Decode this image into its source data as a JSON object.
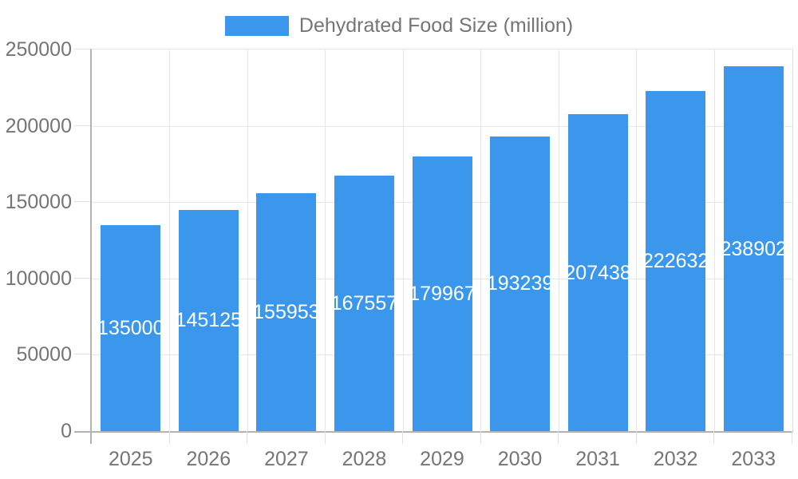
{
  "legend": {
    "label": "Dehydrated Food Size (million)"
  },
  "chart_data": {
    "type": "bar",
    "title": "",
    "categories": [
      "2025",
      "2026",
      "2027",
      "2028",
      "2029",
      "2030",
      "2031",
      "2032",
      "2033"
    ],
    "series": [
      {
        "name": "Dehydrated Food Size (million)",
        "values": [
          135000,
          145125,
          155953,
          167557,
          179967,
          193239,
          207438,
          222632,
          238902
        ]
      }
    ],
    "value_labels": {
      "position": "inside-center",
      "color": "#ffffff",
      "texts": [
        "135000",
        "145125",
        "155953",
        "167557",
        "179967",
        "193239",
        "207438",
        "222632",
        "238902"
      ]
    },
    "xlabel": "",
    "ylabel": "",
    "ylim": [
      0,
      250000
    ],
    "yticks": [
      0,
      50000,
      100000,
      150000,
      200000,
      250000
    ],
    "ytick_labels": [
      "0",
      "50000",
      "100000",
      "150000",
      "200000",
      "250000"
    ],
    "grid": true,
    "legend_position": "top-center",
    "colors": {
      "bar": "#3A97EB",
      "axis_line": "#b3b3b3",
      "gridline": "#e6e6e6",
      "tick": "#e0e0e0",
      "axis_label": "#757575",
      "value_label": "#ffffff"
    }
  }
}
